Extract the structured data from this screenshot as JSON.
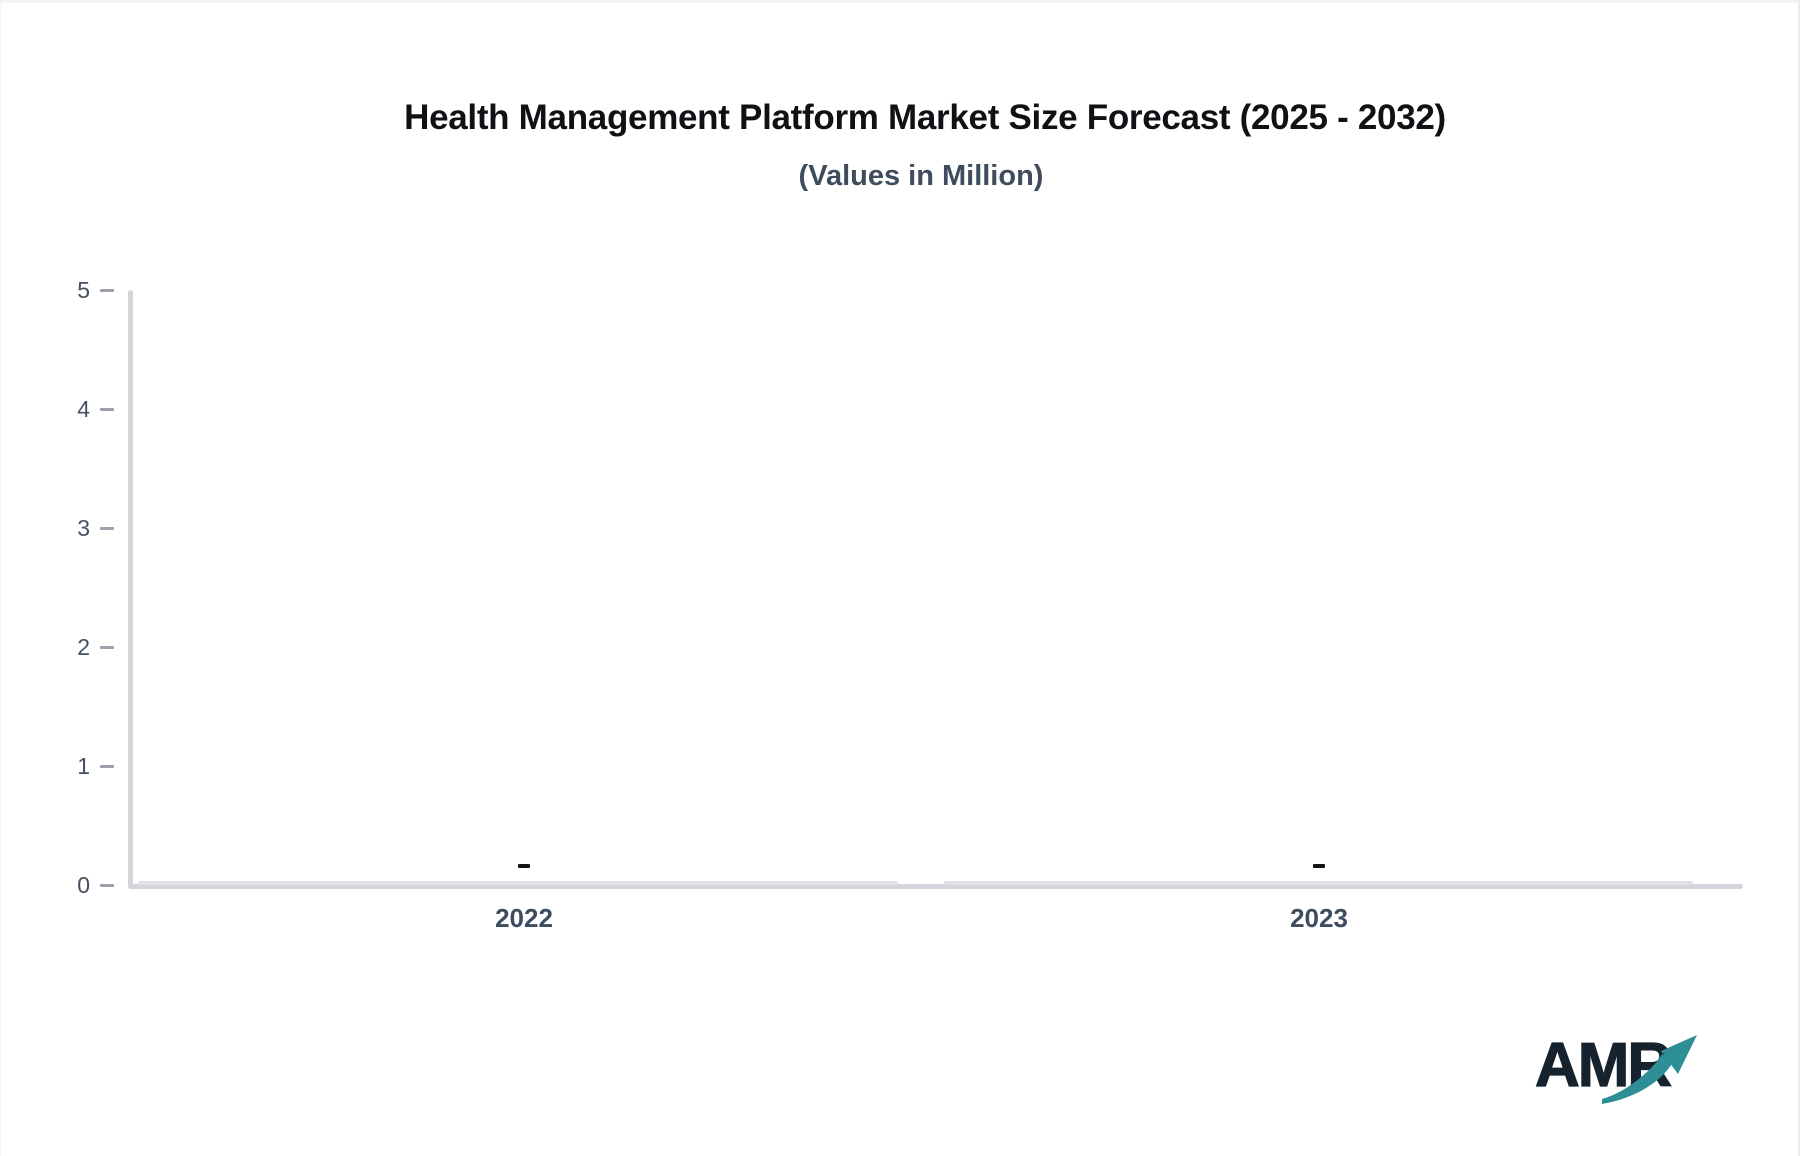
{
  "page": {
    "background": "#ffffff",
    "top_edge_color": "#f3f4f6",
    "side_edge_color": "#ececee"
  },
  "header": {
    "title": "Health Management Platform Market Size Forecast (2025 - 2032)",
    "subtitle": "(Values in Million)"
  },
  "chart_data": {
    "type": "bar",
    "title": "Health Management Platform Market Size Forecast (2025 - 2032)",
    "subtitle": "(Values in Million)",
    "categories": [
      "2022",
      "2023"
    ],
    "values": [
      0,
      0
    ],
    "value_labels": [
      "-",
      "-"
    ],
    "xlabel": "",
    "ylabel": "",
    "ylim": [
      0,
      5
    ],
    "yticks": [
      0,
      1,
      2,
      3,
      4,
      5
    ],
    "grid": false,
    "legend": false
  },
  "colors": {
    "title": "#101114",
    "subtitle": "#3e4c5e",
    "y_label": "#45505f",
    "x_label": "#3d4c61",
    "axis_line": "#d3d5da",
    "zero_bar": "#dfe1e6",
    "tick_mark": "#9aa1ab",
    "value_dash": "#111418",
    "logo_text": "#16232e",
    "logo_arrow": "#2e8e96"
  },
  "logo": {
    "text": "AMR"
  }
}
